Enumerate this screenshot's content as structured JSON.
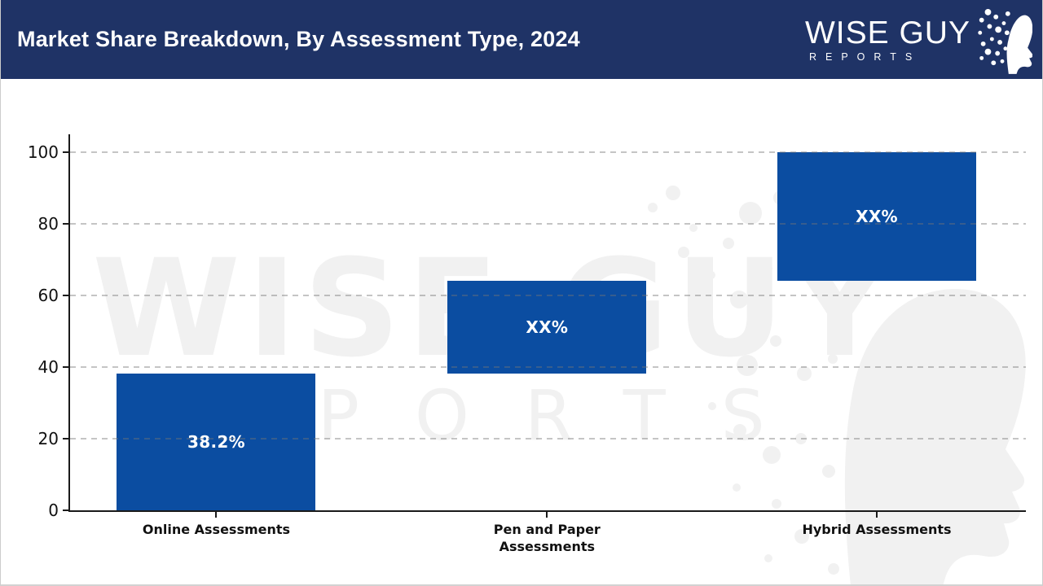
{
  "colors": {
    "header_bg": "#1f3366",
    "bar": "#0b4da1",
    "watermark": "#f1f1f1",
    "axis": "#1a1a1a"
  },
  "header": {
    "title": "Market Share Breakdown, By Assessment Type, 2024",
    "brand": {
      "name": "WISE GUY REPORTS",
      "line1": "WISE GUY",
      "line2": "REPORTS"
    }
  },
  "watermark": {
    "line1": "WISE GUY",
    "line2": "REPORTS"
  },
  "chart_data": {
    "type": "bar",
    "subtype": "floating-segment-waterfall",
    "title": "Market Share Breakdown, By Assessment Type, 2024",
    "categories": [
      "Online Assessments",
      "Pen and Paper\nAssessments",
      "Hybrid Assessments"
    ],
    "bars": [
      {
        "category": "Online Assessments",
        "base": 0,
        "top": 38.2,
        "value_label": "38.2%"
      },
      {
        "category": "Pen and Paper Assessments",
        "base": 38.2,
        "top": 64,
        "value_label": "XX%"
      },
      {
        "category": "Hybrid Assessments",
        "base": 64,
        "top": 100,
        "value_label": "XX%"
      }
    ],
    "yticks": [
      0,
      20,
      40,
      60,
      80,
      100
    ],
    "ylim": [
      0,
      105
    ],
    "xlabel": "",
    "ylabel": "",
    "grid": "horizontal-dashed",
    "legend": "none",
    "bar_label_color": "#ffffff"
  }
}
